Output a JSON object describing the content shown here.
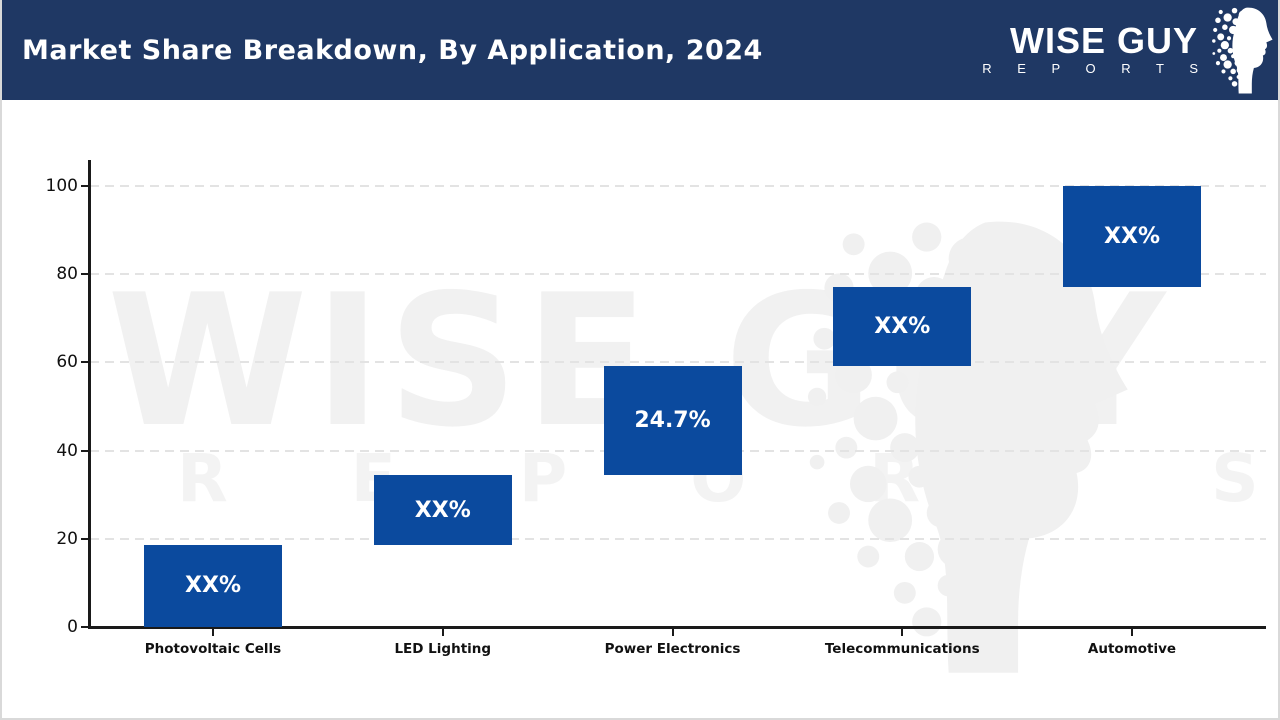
{
  "header": {
    "title": "Market Share Breakdown, By Application, 2024",
    "logo": {
      "wordmark": "WISE GUY",
      "subtext": "R E P O R T S"
    }
  },
  "watermark": {
    "wordmark": "WISE GUY",
    "subtext": "R E P O R T S"
  },
  "chart_data": {
    "type": "bar",
    "subtype": "floating-waterfall",
    "title": "Market Share Breakdown, By Application, 2024",
    "categories": [
      "Photovoltaic Cells",
      "LED Lighting",
      "Power Electronics",
      "Telecommunications",
      "Automotive"
    ],
    "bars": [
      {
        "category": "Photovoltaic Cells",
        "start": 0,
        "end": 18.6,
        "label": "XX%"
      },
      {
        "category": "LED Lighting",
        "start": 18.6,
        "end": 34.4,
        "label": "XX%"
      },
      {
        "category": "Power Electronics",
        "start": 34.4,
        "end": 59.1,
        "label": "24.7%"
      },
      {
        "category": "Telecommunications",
        "start": 59.1,
        "end": 77.2,
        "label": "XX%"
      },
      {
        "category": "Automotive",
        "start": 77.2,
        "end": 100,
        "label": "XX%"
      }
    ],
    "xlabel": "",
    "ylabel": "",
    "ylim": [
      0,
      105
    ],
    "yticks": [
      0,
      20,
      40,
      60,
      80,
      100
    ],
    "grid": "horizontal-dashed",
    "legend": "none",
    "colors": {
      "bar": "#0b4a9e",
      "bar_label": "#ffffff",
      "axis": "#1a1a1a",
      "gridline": "#e3e3e3",
      "header_bg": "#1f3864",
      "watermark": "#f1f1f1"
    }
  }
}
